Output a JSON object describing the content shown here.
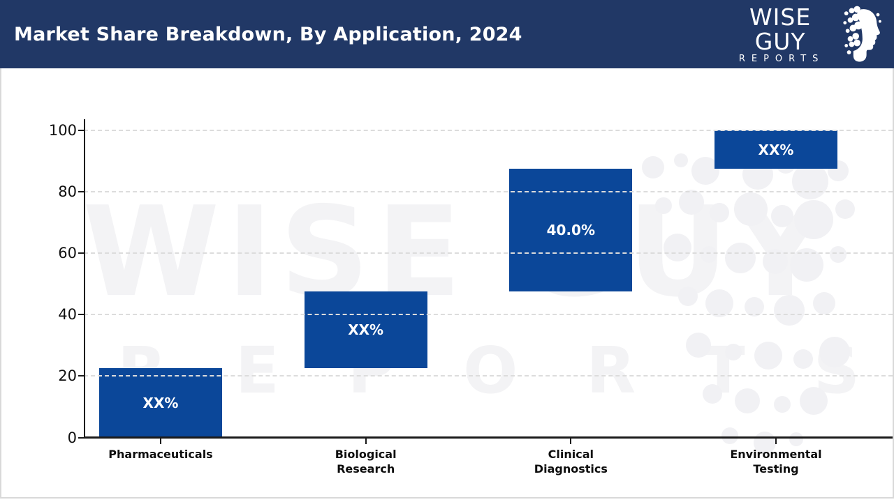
{
  "header": {
    "title": "Market Share Breakdown, By Application, 2024",
    "logo": {
      "line1": "WISE GUY",
      "line2": "REPORTS"
    }
  },
  "watermark": {
    "line1": "WISE GUY",
    "line2": "REPORTS"
  },
  "chart_data": {
    "type": "bar",
    "subtype": "floating-waterfall",
    "title": "Market Share Breakdown, By Application, 2024",
    "xlabel": "",
    "ylabel": "",
    "categories": [
      "Pharmaceuticals",
      "Biological\nResearch",
      "Clinical\nDiagnostics",
      "Environmental\nTesting"
    ],
    "series": [
      {
        "name": "Market Share %",
        "segments": [
          {
            "category": "Pharmaceuticals",
            "start": 0,
            "end": 22.5,
            "label": "XX%"
          },
          {
            "category": "Biological Research",
            "start": 22.5,
            "end": 47.5,
            "label": "XX%"
          },
          {
            "category": "Clinical Diagnostics",
            "start": 47.5,
            "end": 87.5,
            "label": "40.0%"
          },
          {
            "category": "Environmental Testing",
            "start": 87.5,
            "end": 100,
            "label": "XX%"
          }
        ]
      }
    ],
    "ylim": [
      0,
      100
    ],
    "yticks": [
      0,
      20,
      40,
      60,
      80,
      100
    ],
    "grid": "horizontal-dashed",
    "legend": "none",
    "bar_color": "#0b4799",
    "bar_label_color": "#ffffff"
  },
  "colors": {
    "header_bg": "#213866",
    "bar": "#0b4799",
    "axis": "#1a1a1a",
    "gridline": "#dcdcdc",
    "watermark": "#f3f3f5",
    "frame_border": "#d9d9d9"
  }
}
